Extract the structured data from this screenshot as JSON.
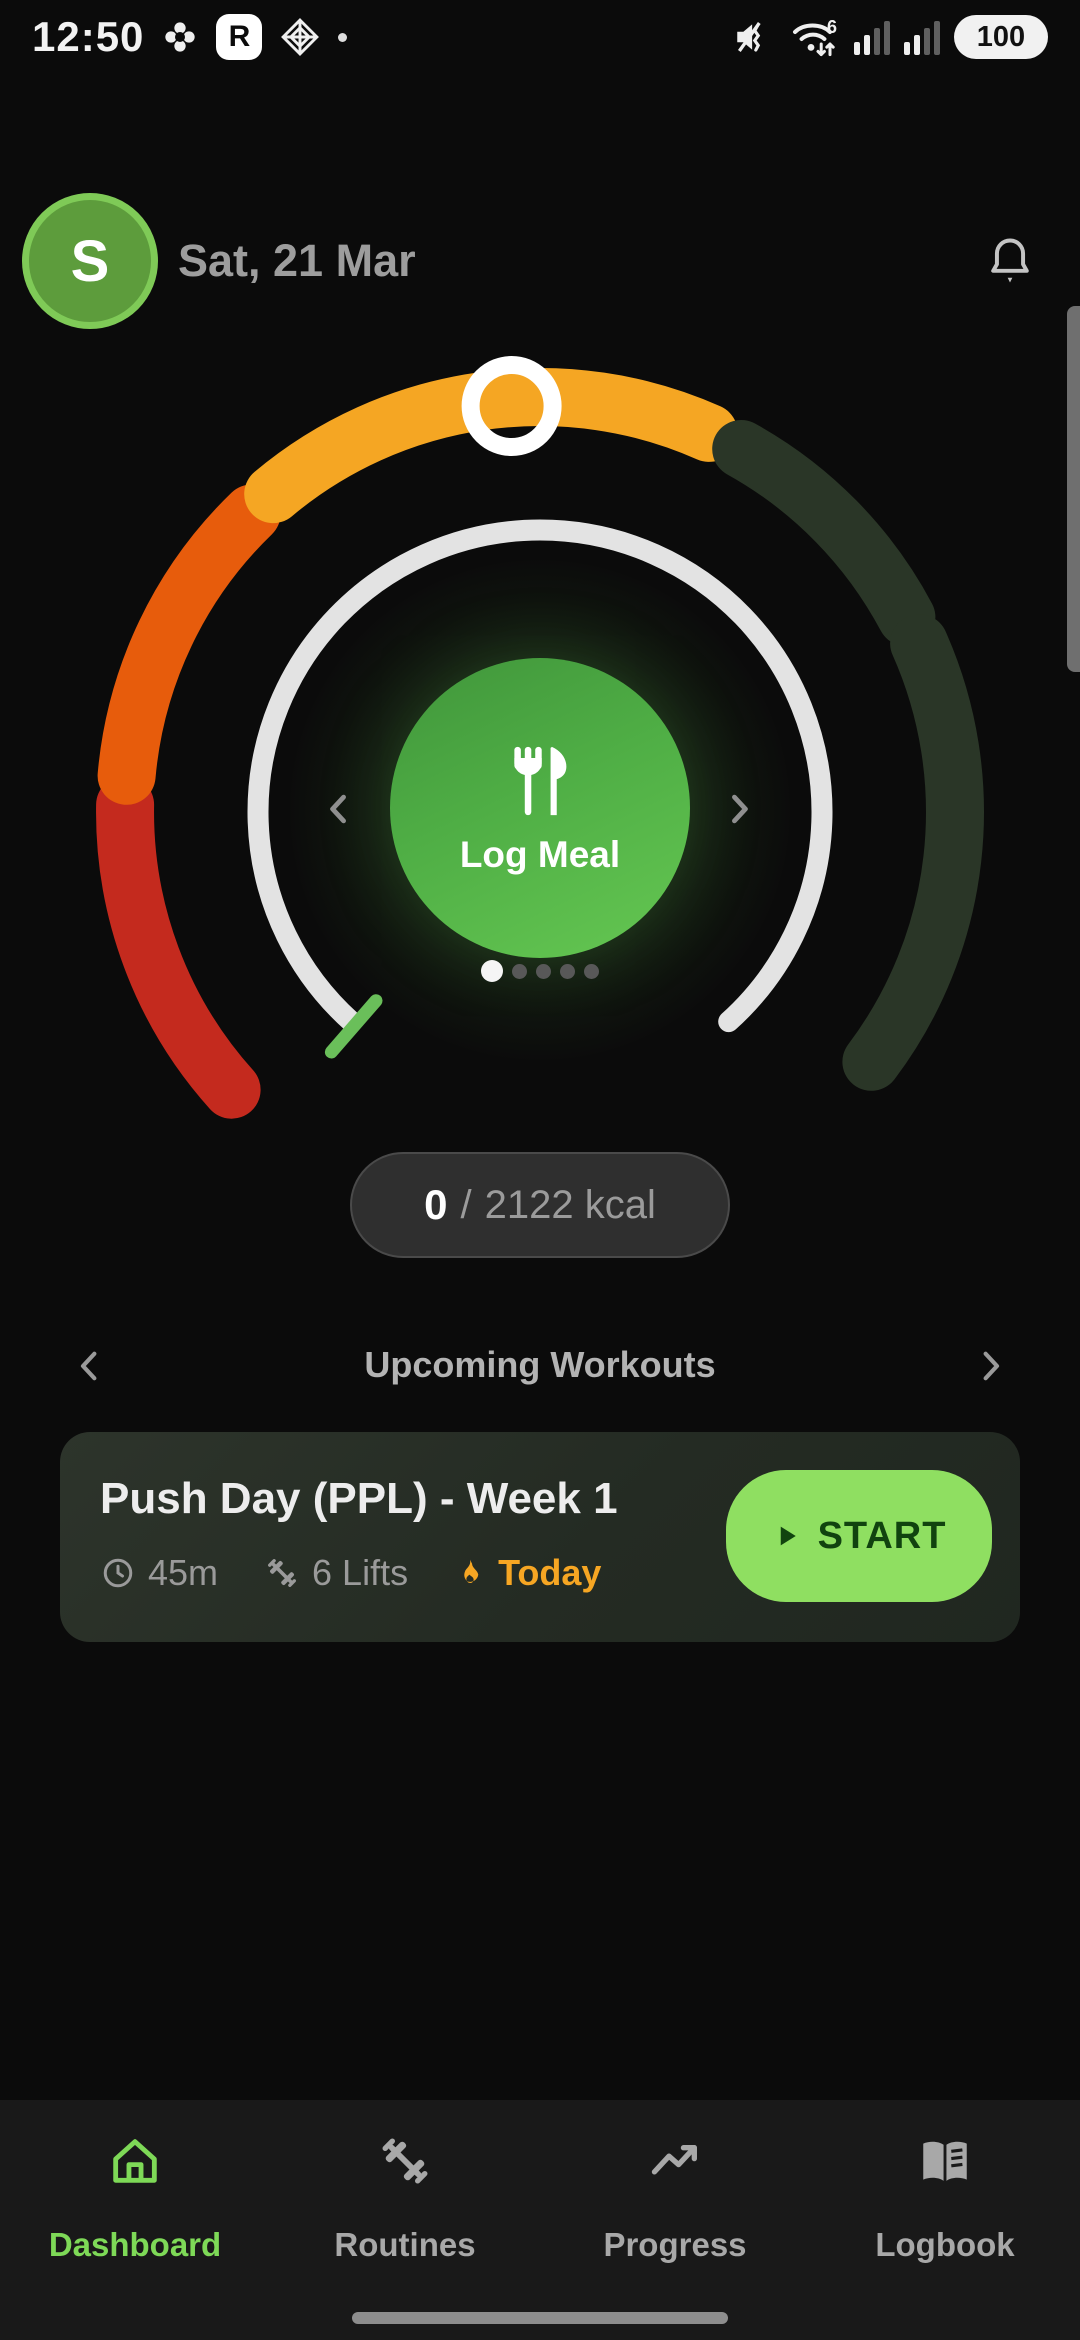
{
  "status_bar": {
    "time": "12:50",
    "carrier_badge": "R",
    "wifi_standard": "6",
    "battery": "100"
  },
  "header": {
    "avatar_initial": "S",
    "date": "Sat, 21 Mar"
  },
  "gauge": {
    "center_button": {
      "label": "Log Meal",
      "icon": "fork-knife-icon"
    },
    "segments": [
      {
        "name": "red-zone",
        "color": "#c42a1e",
        "start": 222,
        "end": 179
      },
      {
        "name": "orange-zone",
        "color": "#e75c0c",
        "start": 175,
        "end": 134
      },
      {
        "name": "amber-zone",
        "color": "#f5a623",
        "start": 130,
        "end": 66
      },
      {
        "name": "dark-green-zone",
        "color": "#2a3627",
        "start": 61,
        "end": 28
      },
      {
        "name": "dark-green-zone",
        "color": "#2a3627",
        "start": 24,
        "end": -37
      }
    ],
    "inner_arc": {
      "color": "#e3e3e3",
      "start": 228,
      "end": -48
    },
    "tick": {
      "color": "#6abf5a",
      "angle": 229
    },
    "marker": {
      "color": "#ffffff",
      "angle": 94
    },
    "dots": {
      "count": 5,
      "active_index": 0
    }
  },
  "calories": {
    "current": "0",
    "separator": "/",
    "target": "2122 kcal"
  },
  "workouts": {
    "section_title": "Upcoming Workouts",
    "card": {
      "title": "Push Day (PPL) - Week 1",
      "duration": "45m",
      "exercises": "6 Lifts",
      "due": "Today",
      "start_label": "START"
    }
  },
  "bottom_nav": {
    "items": [
      {
        "label": "Dashboard",
        "icon": "home-icon",
        "active": true
      },
      {
        "label": "Routines",
        "icon": "dumbbell-icon",
        "active": false
      },
      {
        "label": "Progress",
        "icon": "trending-up-icon",
        "active": false
      },
      {
        "label": "Logbook",
        "icon": "book-icon",
        "active": false
      }
    ]
  },
  "colors": {
    "background": "#0b0b0b",
    "nav_background": "#191919",
    "accent_green": "#7ed957",
    "button_green": "#8fdf61",
    "amber": "#f6a623",
    "card_background": "#272e25"
  }
}
